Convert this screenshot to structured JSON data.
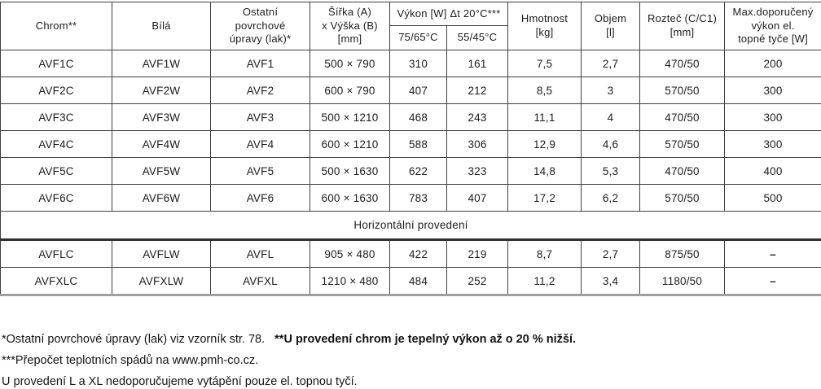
{
  "colors": {
    "background": "#ffffff",
    "text": "#1c1c1c",
    "border": "#3f3f3f",
    "section_divider": "#2e2e2e",
    "table_bottom_border": "#9f9f9f"
  },
  "table": {
    "header": {
      "chrom": "Chrom**",
      "bila": "Bílá",
      "ostatni": "Ostatní\npovrchové\núpravy (lak)*",
      "sirka_vyska": "Šířka (A)\nx Výška (B)\n[mm]",
      "vykon": "Výkon [W] Δt 20°C***",
      "vykon_sub_1": "75/65°C",
      "vykon_sub_2": "55/45°C",
      "hmotnost": "Hmotnost\n[kg]",
      "objem": "Objem\n[l]",
      "roztec": "Rozteč (C/C1)\n[mm]",
      "max_vykon": "Max.doporučený\nvýkon el.\ntopné tyče [W]"
    },
    "rows_vertical": [
      [
        "AVF1C",
        "AVF1W",
        "AVF1",
        "500 × 790",
        "310",
        "161",
        "7,5",
        "2,7",
        "470/50",
        "200"
      ],
      [
        "AVF2C",
        "AVF2W",
        "AVF2",
        "600 × 790",
        "407",
        "212",
        "8,5",
        "3",
        "570/50",
        "300"
      ],
      [
        "AVF3C",
        "AVF3W",
        "AVF3",
        "500 × 1210",
        "468",
        "243",
        "11,1",
        "4",
        "470/50",
        "300"
      ],
      [
        "AVF4C",
        "AVF4W",
        "AVF4",
        "600 × 1210",
        "588",
        "306",
        "12,9",
        "4,6",
        "570/50",
        "300"
      ],
      [
        "AVF5C",
        "AVF5W",
        "AVF5",
        "500 × 1630",
        "622",
        "323",
        "14,8",
        "5,3",
        "470/50",
        "400"
      ],
      [
        "AVF6C",
        "AVF6W",
        "AVF6",
        "600 × 1630",
        "783",
        "407",
        "17,2",
        "6,2",
        "570/50",
        "500"
      ]
    ],
    "section_label": "Horizontální provedení",
    "rows_horizontal": [
      [
        "AVFLC",
        "AVFLW",
        "AVFL",
        "905 × 480",
        "422",
        "219",
        "8,7",
        "2,7",
        "875/50",
        "–"
      ],
      [
        "AVFXLC",
        "AVFXLW",
        "AVFXL",
        "1210 × 480",
        "484",
        "252",
        "11,2",
        "3,4",
        "1180/50",
        "–"
      ]
    ]
  },
  "footnotes": {
    "line1_normal": "*Ostatní povrchové úpravy (lak) viz vzorník str. 78.",
    "line1_bold": "**U provedení chrom je tepelný výkon až o 20 % nižší.",
    "line2": "***Přepočet teplotních spádů na www.pmh-co.cz.",
    "line3": "U provedení L a XL nedoporučujeme vytápění pouze el. topnou tyčí."
  }
}
